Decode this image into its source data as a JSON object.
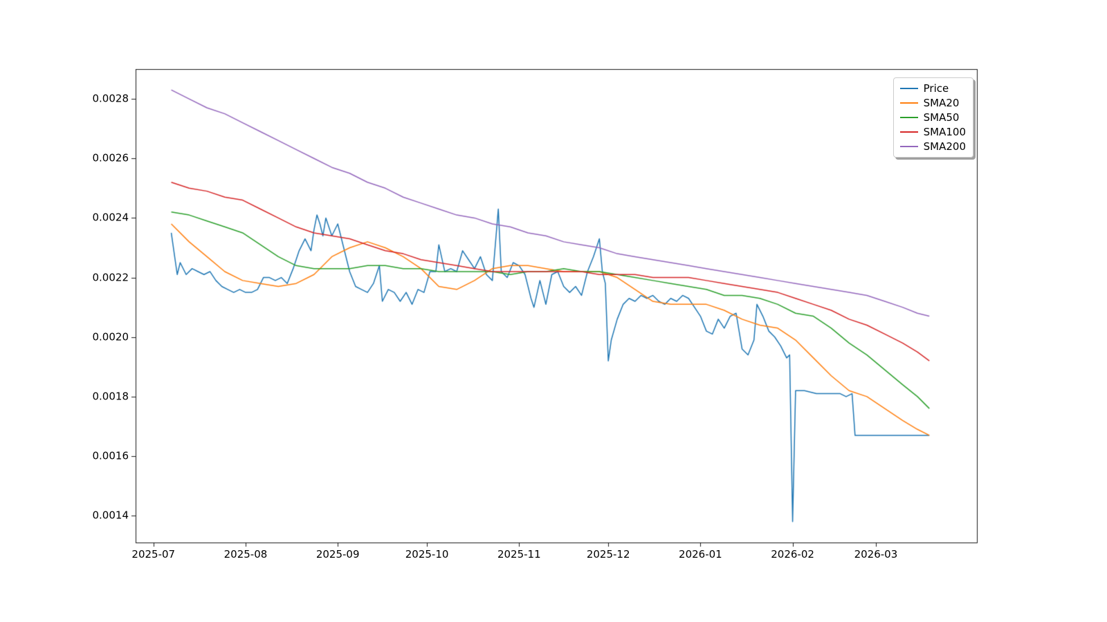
{
  "figure": {
    "background": "#ffffff"
  },
  "chart_data": {
    "type": "line",
    "title": "",
    "xlabel": "",
    "ylabel": "",
    "grid": false,
    "legend": {
      "position": "upper right",
      "entries": [
        "Price",
        "SMA20",
        "SMA50",
        "SMA100",
        "SMA200"
      ]
    },
    "xlim": [
      "2025-06-25",
      "2026-04-04"
    ],
    "ylim": [
      0.00131,
      0.0029
    ],
    "xticks": [
      {
        "value": "2025-07-01",
        "label": "2025-07"
      },
      {
        "value": "2025-08-01",
        "label": "2025-08"
      },
      {
        "value": "2025-09-01",
        "label": "2025-09"
      },
      {
        "value": "2025-10-01",
        "label": "2025-10"
      },
      {
        "value": "2025-11-01",
        "label": "2025-11"
      },
      {
        "value": "2025-12-01",
        "label": "2025-12"
      },
      {
        "value": "2026-01-01",
        "label": "2026-01"
      },
      {
        "value": "2026-02-01",
        "label": "2026-02"
      },
      {
        "value": "2026-03-01",
        "label": "2026-03"
      }
    ],
    "yticks": [
      {
        "value": 0.0014,
        "label": "0.0014"
      },
      {
        "value": 0.0016,
        "label": "0.0016"
      },
      {
        "value": 0.0018,
        "label": "0.0018"
      },
      {
        "value": 0.002,
        "label": "0.0020"
      },
      {
        "value": 0.0022,
        "label": "0.0022"
      },
      {
        "value": 0.0024,
        "label": "0.0024"
      },
      {
        "value": 0.0026,
        "label": "0.0026"
      },
      {
        "value": 0.0028,
        "label": "0.0028"
      }
    ],
    "series": [
      {
        "name": "Price",
        "color": "#1f77b4",
        "x": [
          "2025-07-07",
          "2025-07-08",
          "2025-07-09",
          "2025-07-10",
          "2025-07-12",
          "2025-07-14",
          "2025-07-16",
          "2025-07-18",
          "2025-07-20",
          "2025-07-22",
          "2025-07-24",
          "2025-07-26",
          "2025-07-28",
          "2025-07-30",
          "2025-08-01",
          "2025-08-03",
          "2025-08-05",
          "2025-08-07",
          "2025-08-09",
          "2025-08-11",
          "2025-08-13",
          "2025-08-15",
          "2025-08-17",
          "2025-08-19",
          "2025-08-21",
          "2025-08-23",
          "2025-08-24",
          "2025-08-25",
          "2025-08-26",
          "2025-08-27",
          "2025-08-28",
          "2025-08-30",
          "2025-09-01",
          "2025-09-03",
          "2025-09-05",
          "2025-09-07",
          "2025-09-09",
          "2025-09-11",
          "2025-09-13",
          "2025-09-15",
          "2025-09-16",
          "2025-09-18",
          "2025-09-20",
          "2025-09-22",
          "2025-09-24",
          "2025-09-26",
          "2025-09-28",
          "2025-09-30",
          "2025-10-02",
          "2025-10-04",
          "2025-10-05",
          "2025-10-07",
          "2025-10-09",
          "2025-10-11",
          "2025-10-13",
          "2025-10-15",
          "2025-10-17",
          "2025-10-19",
          "2025-10-21",
          "2025-10-23",
          "2025-10-25",
          "2025-10-26",
          "2025-10-28",
          "2025-10-30",
          "2025-11-01",
          "2025-11-03",
          "2025-11-05",
          "2025-11-06",
          "2025-11-08",
          "2025-11-10",
          "2025-11-12",
          "2025-11-14",
          "2025-11-16",
          "2025-11-18",
          "2025-11-20",
          "2025-11-22",
          "2025-11-24",
          "2025-11-26",
          "2025-11-28",
          "2025-11-29",
          "2025-11-30",
          "2025-12-01",
          "2025-12-02",
          "2025-12-04",
          "2025-12-06",
          "2025-12-08",
          "2025-12-10",
          "2025-12-12",
          "2025-12-14",
          "2025-12-16",
          "2025-12-18",
          "2025-12-20",
          "2025-12-22",
          "2025-12-24",
          "2025-12-26",
          "2025-12-28",
          "2025-12-30",
          "2026-01-01",
          "2026-01-03",
          "2026-01-05",
          "2026-01-07",
          "2026-01-09",
          "2026-01-11",
          "2026-01-13",
          "2026-01-15",
          "2026-01-17",
          "2026-01-19",
          "2026-01-20",
          "2026-01-22",
          "2026-01-24",
          "2026-01-26",
          "2026-01-28",
          "2026-01-30",
          "2026-01-31",
          "2026-02-01",
          "2026-02-02",
          "2026-02-05",
          "2026-02-09",
          "2026-02-13",
          "2026-02-17",
          "2026-02-19",
          "2026-02-21",
          "2026-02-22",
          "2026-02-26",
          "2026-03-02",
          "2026-03-06",
          "2026-03-10",
          "2026-03-14",
          "2026-03-19"
        ],
        "y": [
          0.00235,
          0.00228,
          0.00221,
          0.00225,
          0.00221,
          0.00223,
          0.00222,
          0.00221,
          0.00222,
          0.00219,
          0.00217,
          0.00216,
          0.00215,
          0.00216,
          0.00215,
          0.00215,
          0.00216,
          0.0022,
          0.0022,
          0.00219,
          0.0022,
          0.00218,
          0.00223,
          0.00229,
          0.00233,
          0.00229,
          0.00236,
          0.00241,
          0.00238,
          0.00234,
          0.0024,
          0.00234,
          0.00238,
          0.0023,
          0.00222,
          0.00217,
          0.00216,
          0.00215,
          0.00218,
          0.00224,
          0.00212,
          0.00216,
          0.00215,
          0.00212,
          0.00215,
          0.00211,
          0.00216,
          0.00215,
          0.00222,
          0.00222,
          0.00231,
          0.00222,
          0.00223,
          0.00222,
          0.00229,
          0.00226,
          0.00223,
          0.00227,
          0.00221,
          0.00219,
          0.00243,
          0.00222,
          0.0022,
          0.00225,
          0.00224,
          0.00221,
          0.00213,
          0.0021,
          0.00219,
          0.00211,
          0.00221,
          0.00222,
          0.00217,
          0.00215,
          0.00217,
          0.00214,
          0.00222,
          0.00227,
          0.00233,
          0.00222,
          0.00218,
          0.00192,
          0.00199,
          0.00206,
          0.00211,
          0.00213,
          0.00212,
          0.00214,
          0.00213,
          0.00214,
          0.00212,
          0.00211,
          0.00213,
          0.00212,
          0.00214,
          0.00213,
          0.0021,
          0.00207,
          0.00202,
          0.00201,
          0.00206,
          0.00203,
          0.00207,
          0.00208,
          0.00196,
          0.00194,
          0.00199,
          0.00211,
          0.00207,
          0.00202,
          0.002,
          0.00197,
          0.00193,
          0.00194,
          0.00138,
          0.00182,
          0.00182,
          0.00181,
          0.00181,
          0.00181,
          0.0018,
          0.00181,
          0.00167,
          0.00167,
          0.00167,
          0.00167,
          0.00167,
          0.00167,
          0.00167
        ]
      },
      {
        "name": "SMA20",
        "color": "#ff7f0e",
        "x": [
          "2025-07-07",
          "2025-07-13",
          "2025-07-19",
          "2025-07-25",
          "2025-07-31",
          "2025-08-06",
          "2025-08-12",
          "2025-08-18",
          "2025-08-24",
          "2025-08-30",
          "2025-09-05",
          "2025-09-11",
          "2025-09-17",
          "2025-09-23",
          "2025-09-29",
          "2025-10-05",
          "2025-10-11",
          "2025-10-17",
          "2025-10-23",
          "2025-10-29",
          "2025-11-04",
          "2025-11-10",
          "2025-11-16",
          "2025-11-22",
          "2025-11-28",
          "2025-12-04",
          "2025-12-10",
          "2025-12-16",
          "2025-12-22",
          "2025-12-28",
          "2026-01-03",
          "2026-01-09",
          "2026-01-15",
          "2026-01-21",
          "2026-01-27",
          "2026-02-02",
          "2026-02-08",
          "2026-02-14",
          "2026-02-20",
          "2026-02-26",
          "2026-03-04",
          "2026-03-10",
          "2026-03-15",
          "2026-03-19"
        ],
        "y": [
          0.00238,
          0.00232,
          0.00227,
          0.00222,
          0.00219,
          0.00218,
          0.00217,
          0.00218,
          0.00221,
          0.00227,
          0.0023,
          0.00232,
          0.0023,
          0.00227,
          0.00223,
          0.00217,
          0.00216,
          0.00219,
          0.00223,
          0.00224,
          0.00224,
          0.00223,
          0.00222,
          0.00222,
          0.00222,
          0.0022,
          0.00216,
          0.00212,
          0.00211,
          0.00211,
          0.00211,
          0.00209,
          0.00206,
          0.00204,
          0.00203,
          0.00199,
          0.00193,
          0.00187,
          0.00182,
          0.0018,
          0.00176,
          0.00172,
          0.00169,
          0.00167
        ]
      },
      {
        "name": "SMA50",
        "color": "#2ca02c",
        "x": [
          "2025-07-07",
          "2025-07-13",
          "2025-07-19",
          "2025-07-25",
          "2025-07-31",
          "2025-08-06",
          "2025-08-12",
          "2025-08-18",
          "2025-08-24",
          "2025-08-30",
          "2025-09-05",
          "2025-09-11",
          "2025-09-17",
          "2025-09-23",
          "2025-09-29",
          "2025-10-05",
          "2025-10-11",
          "2025-10-17",
          "2025-10-23",
          "2025-10-29",
          "2025-11-04",
          "2025-11-10",
          "2025-11-16",
          "2025-11-22",
          "2025-11-28",
          "2025-12-04",
          "2025-12-10",
          "2025-12-16",
          "2025-12-22",
          "2025-12-28",
          "2026-01-03",
          "2026-01-09",
          "2026-01-15",
          "2026-01-21",
          "2026-01-27",
          "2026-02-02",
          "2026-02-08",
          "2026-02-14",
          "2026-02-20",
          "2026-02-26",
          "2026-03-04",
          "2026-03-10",
          "2026-03-15",
          "2026-03-19"
        ],
        "y": [
          0.00242,
          0.00241,
          0.00239,
          0.00237,
          0.00235,
          0.00231,
          0.00227,
          0.00224,
          0.00223,
          0.00223,
          0.00223,
          0.00224,
          0.00224,
          0.00223,
          0.00223,
          0.00222,
          0.00222,
          0.00222,
          0.00222,
          0.00221,
          0.00222,
          0.00222,
          0.00223,
          0.00222,
          0.00222,
          0.00221,
          0.0022,
          0.00219,
          0.00218,
          0.00217,
          0.00216,
          0.00214,
          0.00214,
          0.00213,
          0.00211,
          0.00208,
          0.00207,
          0.00203,
          0.00198,
          0.00194,
          0.00189,
          0.00184,
          0.0018,
          0.00176
        ]
      },
      {
        "name": "SMA100",
        "color": "#d62728",
        "x": [
          "2025-07-07",
          "2025-07-13",
          "2025-07-19",
          "2025-07-25",
          "2025-07-31",
          "2025-08-06",
          "2025-08-12",
          "2025-08-18",
          "2025-08-24",
          "2025-08-30",
          "2025-09-05",
          "2025-09-11",
          "2025-09-17",
          "2025-09-23",
          "2025-09-29",
          "2025-10-05",
          "2025-10-11",
          "2025-10-17",
          "2025-10-23",
          "2025-10-29",
          "2025-11-04",
          "2025-11-10",
          "2025-11-16",
          "2025-11-22",
          "2025-11-28",
          "2025-12-04",
          "2025-12-10",
          "2025-12-16",
          "2025-12-22",
          "2025-12-28",
          "2026-01-03",
          "2026-01-09",
          "2026-01-15",
          "2026-01-21",
          "2026-01-27",
          "2026-02-02",
          "2026-02-08",
          "2026-02-14",
          "2026-02-20",
          "2026-02-26",
          "2026-03-04",
          "2026-03-10",
          "2026-03-15",
          "2026-03-19"
        ],
        "y": [
          0.00252,
          0.0025,
          0.00249,
          0.00247,
          0.00246,
          0.00243,
          0.0024,
          0.00237,
          0.00235,
          0.00234,
          0.00233,
          0.00231,
          0.00229,
          0.00228,
          0.00226,
          0.00225,
          0.00224,
          0.00223,
          0.00222,
          0.00222,
          0.00222,
          0.00222,
          0.00222,
          0.00222,
          0.00221,
          0.00221,
          0.00221,
          0.0022,
          0.0022,
          0.0022,
          0.00219,
          0.00218,
          0.00217,
          0.00216,
          0.00215,
          0.00213,
          0.00211,
          0.00209,
          0.00206,
          0.00204,
          0.00201,
          0.00198,
          0.00195,
          0.00192
        ]
      },
      {
        "name": "SMA200",
        "color": "#9467bd",
        "x": [
          "2025-07-07",
          "2025-07-13",
          "2025-07-19",
          "2025-07-25",
          "2025-07-31",
          "2025-08-06",
          "2025-08-12",
          "2025-08-18",
          "2025-08-24",
          "2025-08-30",
          "2025-09-05",
          "2025-09-11",
          "2025-09-17",
          "2025-09-23",
          "2025-09-29",
          "2025-10-05",
          "2025-10-11",
          "2025-10-17",
          "2025-10-23",
          "2025-10-29",
          "2025-11-04",
          "2025-11-10",
          "2025-11-16",
          "2025-11-22",
          "2025-11-28",
          "2025-12-04",
          "2025-12-10",
          "2025-12-16",
          "2025-12-22",
          "2025-12-28",
          "2026-01-03",
          "2026-01-09",
          "2026-01-15",
          "2026-01-21",
          "2026-01-27",
          "2026-02-02",
          "2026-02-08",
          "2026-02-14",
          "2026-02-20",
          "2026-02-26",
          "2026-03-04",
          "2026-03-10",
          "2026-03-15",
          "2026-03-19"
        ],
        "y": [
          0.00283,
          0.0028,
          0.00277,
          0.00275,
          0.00272,
          0.00269,
          0.00266,
          0.00263,
          0.0026,
          0.00257,
          0.00255,
          0.00252,
          0.0025,
          0.00247,
          0.00245,
          0.00243,
          0.00241,
          0.0024,
          0.00238,
          0.00237,
          0.00235,
          0.00234,
          0.00232,
          0.00231,
          0.0023,
          0.00228,
          0.00227,
          0.00226,
          0.00225,
          0.00224,
          0.00223,
          0.00222,
          0.00221,
          0.0022,
          0.00219,
          0.00218,
          0.00217,
          0.00216,
          0.00215,
          0.00214,
          0.00212,
          0.0021,
          0.00208,
          0.00207
        ]
      }
    ]
  }
}
